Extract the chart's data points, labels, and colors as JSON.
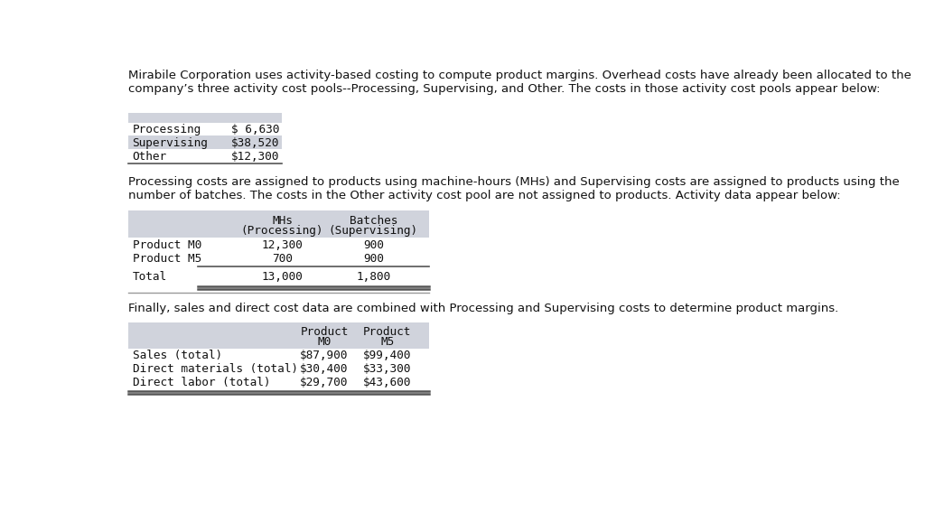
{
  "intro_text": "Mirabile Corporation uses activity-based costing to compute product margins. Overhead costs have already been allocated to the\ncompany’s three activity cost pools--Processing, Supervising, and Other. The costs in those activity cost pools appear below:",
  "cost_pools": [
    [
      "Processing",
      "$ 6,630"
    ],
    [
      "Supervising",
      "$38,520"
    ],
    [
      "Other",
      "$12,300"
    ]
  ],
  "mid_text": "Processing costs are assigned to products using machine-hours (MHs) and Supervising costs are assigned to products using the\nnumber of batches. The costs in the Other activity cost pool are not assigned to products. Activity data appear below:",
  "activity_rows": [
    [
      "Product M0",
      "12,300",
      "900"
    ],
    [
      "Product M5",
      "700",
      "900"
    ]
  ],
  "activity_total": [
    "Total",
    "13,000",
    "1,800"
  ],
  "final_text": "Finally, sales and direct cost data are combined with Processing and Supervising costs to determine product margins.",
  "product_rows": [
    [
      "Sales (total)",
      "$87,900",
      "$99,400"
    ],
    [
      "Direct materials (total)",
      "$30,400",
      "$33,300"
    ],
    [
      "Direct labor (total)",
      "$29,700",
      "$43,600"
    ]
  ],
  "header_bg": "#d0d3dc",
  "alt_row_bg": "#e8e8f0",
  "white_bg": "#ffffff",
  "font_mono": "monospace",
  "font_sans": "sans-serif",
  "text_color": "#111111"
}
